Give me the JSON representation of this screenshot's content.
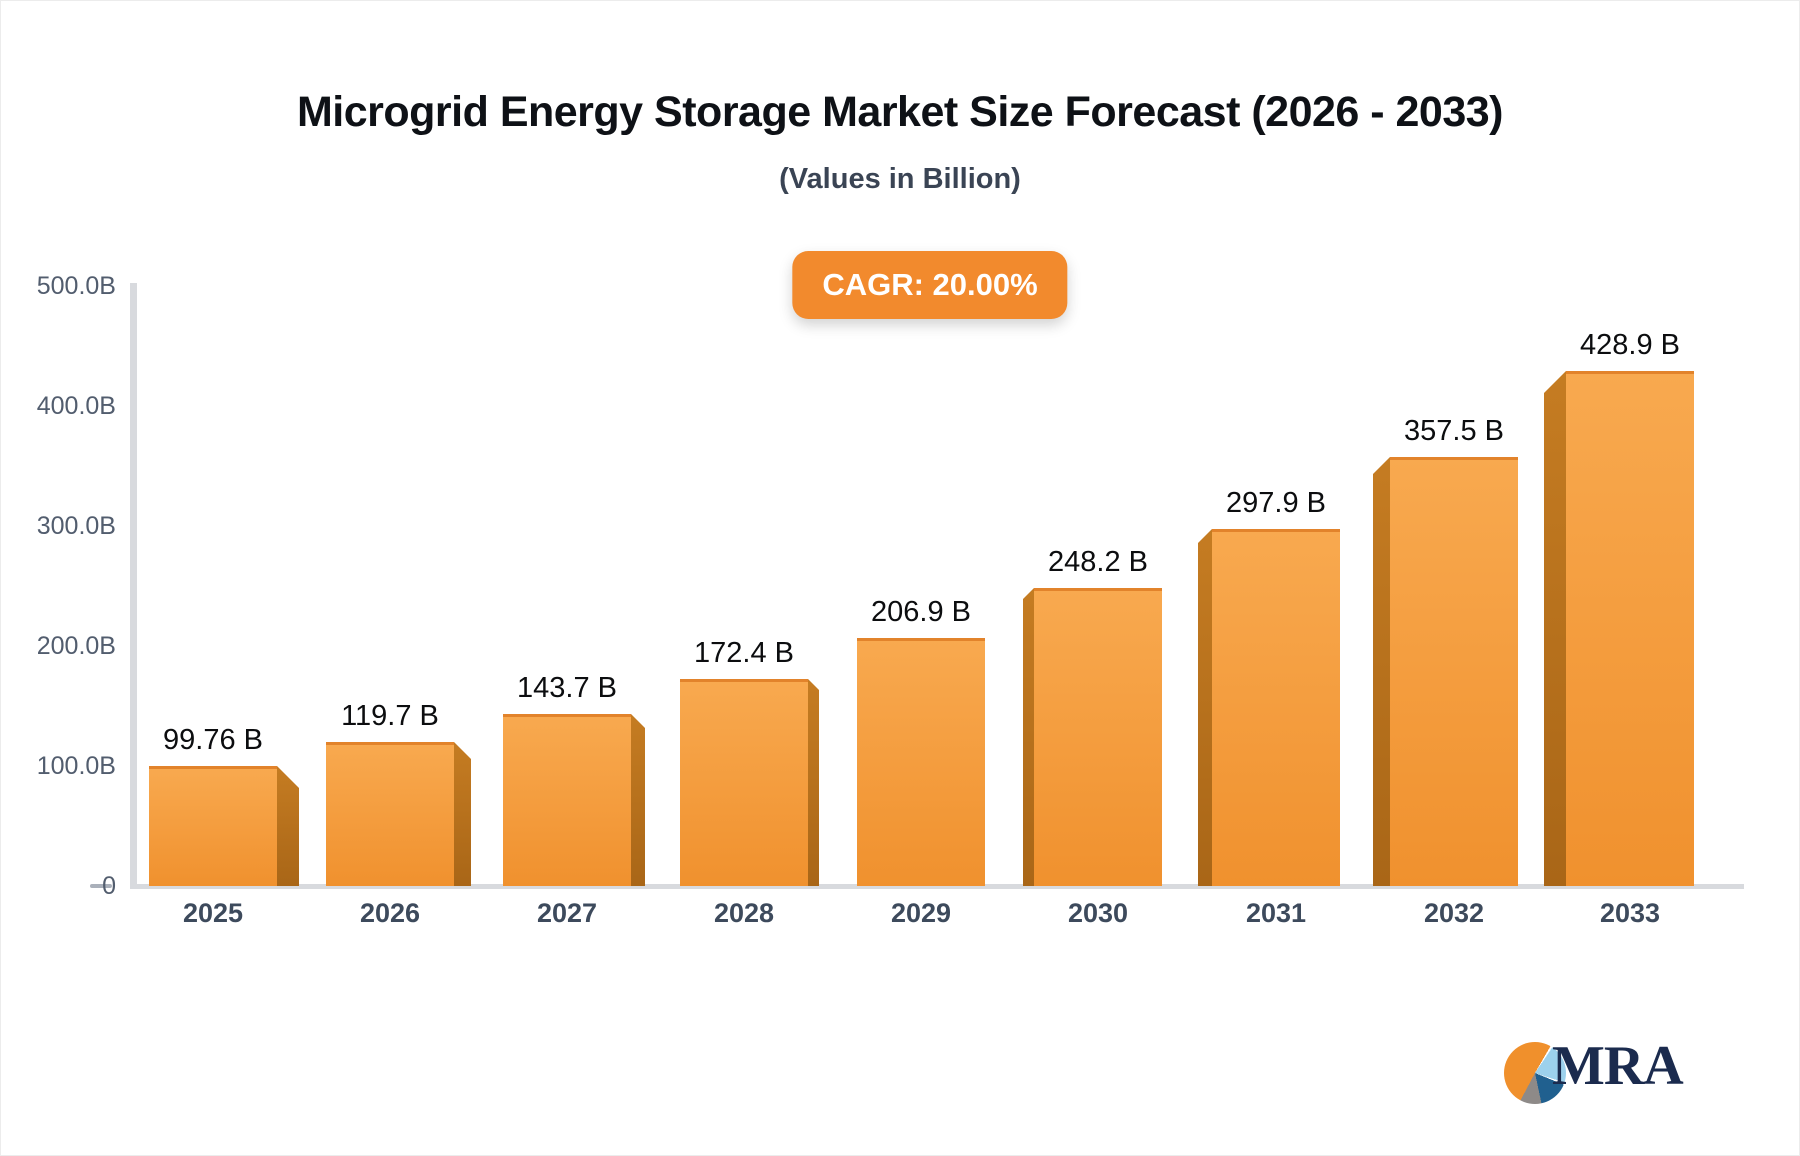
{
  "header": {
    "title": "Microgrid Energy Storage Market Size Forecast (2026 - 2033)",
    "subtitle": "(Values in Billion)"
  },
  "badge": {
    "label": "CAGR: 20.00%",
    "color": "#f28a2d"
  },
  "chart_data": {
    "type": "bar",
    "title": "Microgrid Energy Storage Market Size Forecast (2026 - 2033)",
    "subtitle": "(Values in Billion)",
    "cagr": "20.00%",
    "categories": [
      "2025",
      "2026",
      "2027",
      "2028",
      "2029",
      "2030",
      "2031",
      "2032",
      "2033"
    ],
    "values": [
      99.76,
      119.7,
      143.7,
      172.4,
      206.9,
      248.2,
      297.9,
      357.5,
      428.9
    ],
    "value_labels": [
      "99.76 B",
      "119.7 B",
      "143.7 B",
      "172.4 B",
      "206.9 B",
      "248.2 B",
      "297.9 B",
      "357.5 B",
      "428.9 B"
    ],
    "xlabel": "",
    "ylabel": "",
    "ylim": [
      0,
      500
    ],
    "ytick_labels": [
      "500.0B",
      "400.0B",
      "300.0B",
      "200.0B",
      "100.0B",
      "0"
    ],
    "ytick_values": [
      500,
      400,
      300,
      200,
      100,
      0
    ],
    "grid": false,
    "legend": false,
    "bar_color_top": "#f8a94f",
    "bar_color_bottom": "#f0912e",
    "bar_side_color": "#b06b1a",
    "unit": "B"
  },
  "logo": {
    "text": "MRA",
    "pie_colors": [
      "#f0902c",
      "#9cd1ec",
      "#20608f",
      "#8e8a88"
    ],
    "text_color": "#1b2b4e"
  }
}
